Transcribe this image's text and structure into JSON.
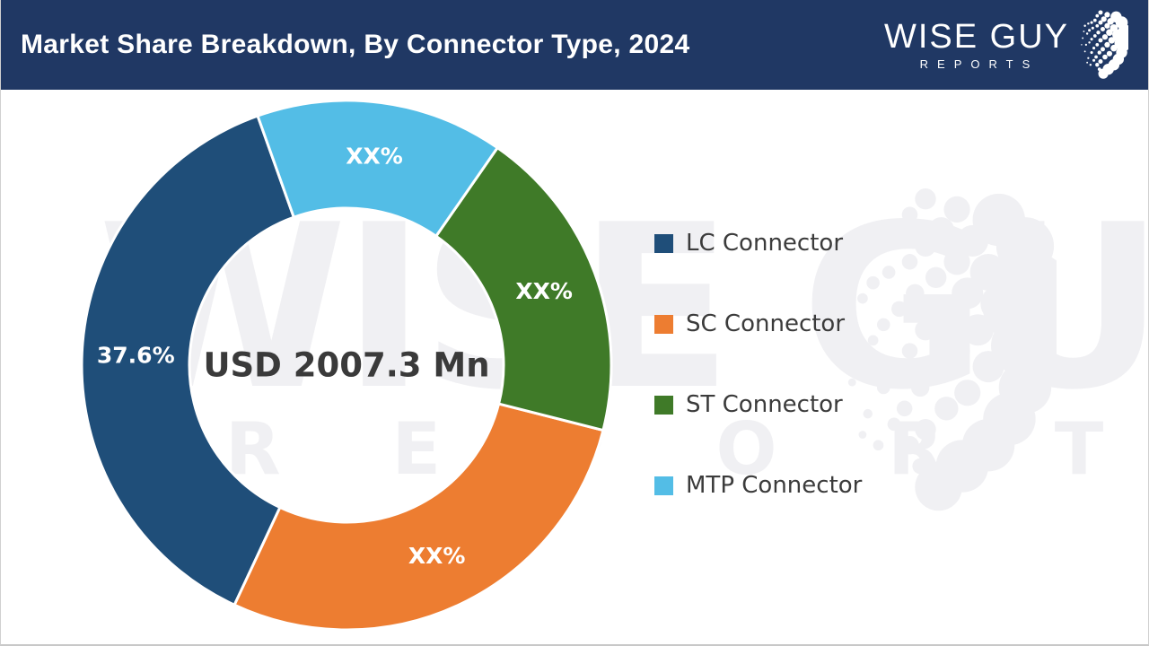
{
  "header": {
    "title": "Market Share Breakdown, By Connector Type, 2024",
    "background": "#203864",
    "logo": {
      "line1": "WISE GUY",
      "line2": "REPORTS"
    }
  },
  "watermark": {
    "line1": "WISE GUY",
    "line2": "R E P O R T S"
  },
  "chart_data": {
    "type": "pie",
    "subtype": "donut",
    "title": "Market Share Breakdown, By Connector Type, 2024",
    "center_label": "USD 2007.3 Mn",
    "start_angle_deg": 109.6,
    "direction": "counterclockwise",
    "inner_radius_ratio": 0.59,
    "legend_position": "right",
    "segments": [
      {
        "label": "LC Connector",
        "value_pct": 37.6,
        "display_label": "37.6%",
        "color": "#1F4E79"
      },
      {
        "label": "SC Connector",
        "value_pct": 28.0,
        "display_label": "XX%",
        "color": "#ED7D31"
      },
      {
        "label": "ST Connector",
        "value_pct": 19.3,
        "display_label": "XX%",
        "color": "#3F7A28"
      },
      {
        "label": "MTP Connector",
        "value_pct": 15.1,
        "display_label": "XX%",
        "color": "#53BDE6"
      }
    ]
  },
  "colors": {
    "header_navy": "#203864",
    "text_dark": "#3a3a3a",
    "watermark_gray": "#f0f0f3",
    "page_border": "#c8c8c8"
  }
}
